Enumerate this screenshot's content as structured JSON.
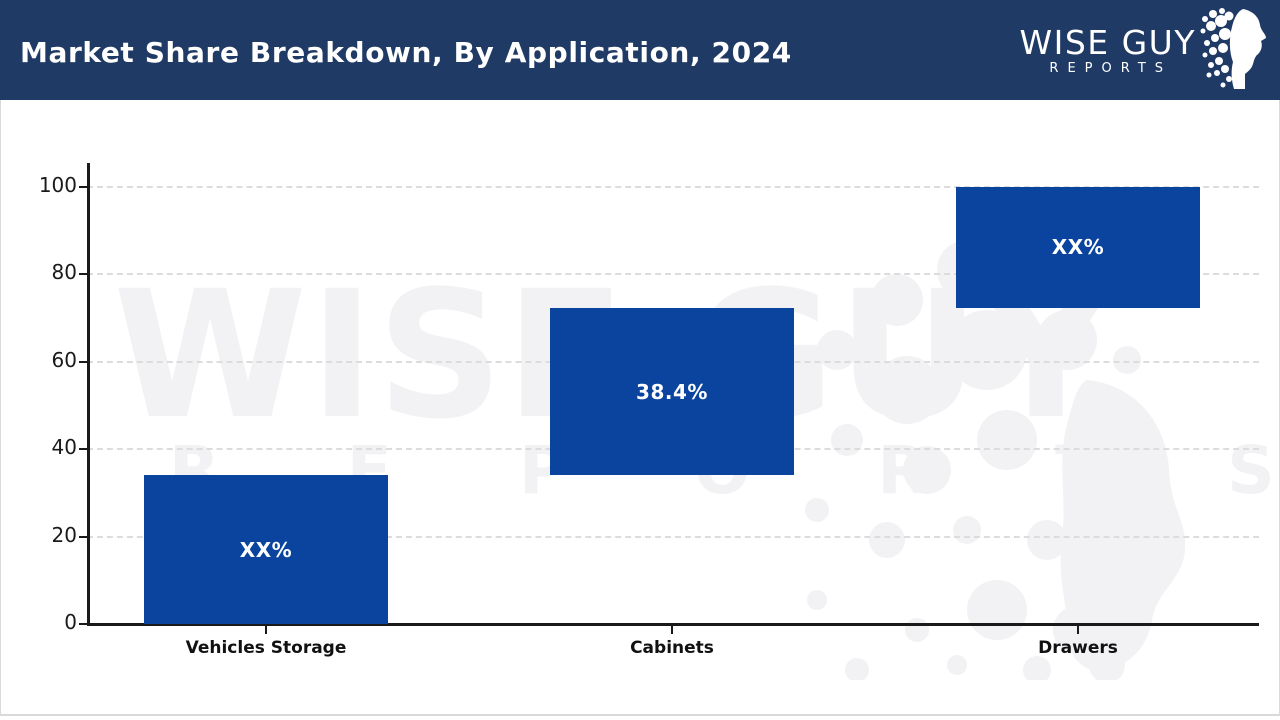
{
  "header": {
    "title": "Market Share Breakdown, By Application, 2024",
    "bg_color": "#203a66",
    "brand": {
      "line1": "WISE GUY",
      "line2": "REPORTS"
    }
  },
  "watermark": {
    "line1": "WISE GUY",
    "line2": "R E P O R T S"
  },
  "chart_data": {
    "type": "bar",
    "subtype": "floating-waterfall",
    "title": "Market Share Breakdown, By Application, 2024",
    "categories": [
      "Vehicles Storage",
      "Cabinets",
      "Drawers"
    ],
    "bars": [
      {
        "category": "Vehicles Storage",
        "start": 0,
        "end": 34,
        "label": "XX%"
      },
      {
        "category": "Cabinets",
        "start": 34,
        "end": 72.4,
        "label": "38.4%"
      },
      {
        "category": "Drawers",
        "start": 72.4,
        "end": 100,
        "label": "XX%"
      }
    ],
    "ylabel": "",
    "xlabel": "",
    "ylim": [
      0,
      100
    ],
    "yticks": [
      0,
      20,
      40,
      60,
      80,
      100
    ],
    "grid": "horizontal-dashed",
    "legend": "none",
    "bar_color": "#0a449e",
    "bar_label_color": "#ffffff",
    "axis_color": "#1a1a1a",
    "grid_color": "#dcdcdc"
  }
}
